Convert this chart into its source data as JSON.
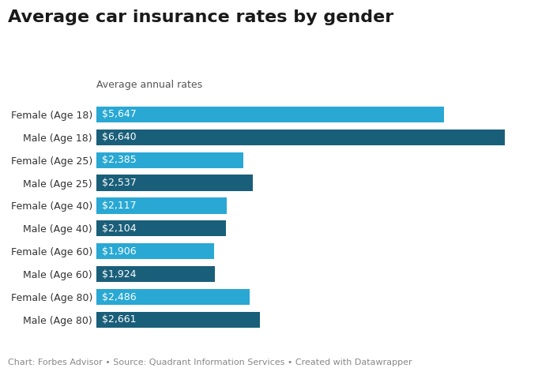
{
  "title": "Average car insurance rates by gender",
  "subtitle": "Average annual rates",
  "footer": "Chart: Forbes Advisor • Source: Quadrant Information Services • Created with Datawrapper",
  "categories": [
    "Female (Age 18)",
    "Male (Age 18)",
    "Female (Age 25)",
    "Male (Age 25)",
    "Female (Age 40)",
    "Male (Age 40)",
    "Female (Age 60)",
    "Male (Age 60)",
    "Female (Age 80)",
    "Male (Age 80)"
  ],
  "values": [
    5647,
    6640,
    2385,
    2537,
    2117,
    2104,
    1906,
    1924,
    2486,
    2661
  ],
  "labels": [
    "$5,647",
    "$6,640",
    "$2,385",
    "$2,537",
    "$2,117",
    "$2,104",
    "$1,906",
    "$1,924",
    "$2,486",
    "$2,661"
  ],
  "colors": [
    "#29a8d4",
    "#1a5f7a",
    "#29a8d4",
    "#1a5f7a",
    "#29a8d4",
    "#1a5f7a",
    "#29a8d4",
    "#1a5f7a",
    "#29a8d4",
    "#1a5f7a"
  ],
  "background_color": "#ffffff",
  "title_fontsize": 16,
  "subtitle_fontsize": 9,
  "label_fontsize": 9,
  "category_fontsize": 9,
  "footer_fontsize": 8,
  "xlim": [
    0,
    7200
  ],
  "bar_height": 0.7
}
